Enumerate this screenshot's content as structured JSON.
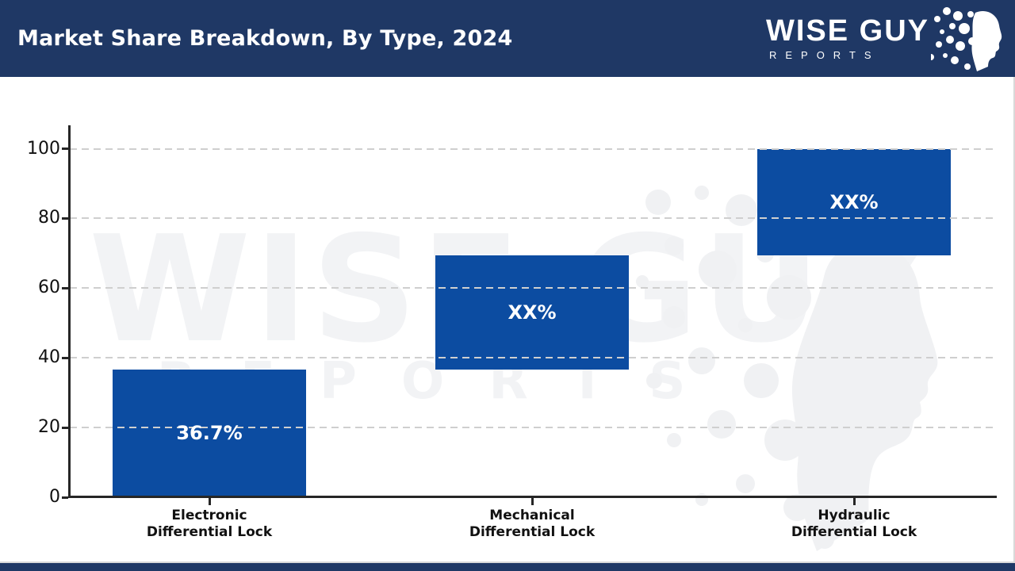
{
  "header": {
    "title": "Market Share Breakdown, By Type, 2024",
    "logo": {
      "line1": "WISE GUY",
      "line2": "REPORTS"
    }
  },
  "watermark": {
    "line1": "WISE GUY",
    "line2": "REPORTS"
  },
  "colors": {
    "header_navy": "#1f3865",
    "footer_navy": "#1f3865",
    "bar_blue": "#0c4ca1",
    "watermark_gray": "#f2f3f5",
    "grid_gray": "#cfcfcf",
    "frame_gray": "#d9d9d9"
  },
  "chart_data": {
    "type": "bar",
    "subtype": "floating-waterfall",
    "title": "Market Share Breakdown, By Type, 2024",
    "categories": [
      {
        "line1": "Electronic",
        "line2": "Differential Lock"
      },
      {
        "line1": "Mechanical",
        "line2": "Differential Lock"
      },
      {
        "line1": "Hydraulic",
        "line2": "Differential Lock"
      }
    ],
    "bars": [
      {
        "category": "Electronic Differential Lock",
        "start": 0,
        "end": 36.7,
        "label": "36.7%"
      },
      {
        "category": "Mechanical Differential Lock",
        "start": 36.7,
        "end": 69.3,
        "label": "XX%"
      },
      {
        "category": "Hydraulic Differential Lock",
        "start": 69.3,
        "end": 100,
        "label": "XX%"
      }
    ],
    "xlabel": "",
    "ylabel": "",
    "ylim": [
      0,
      107
    ],
    "yticks": [
      0,
      20,
      40,
      60,
      80,
      100
    ],
    "grid": "horizontal-dashed",
    "legend": "none",
    "bar_color": "#0c4ca1",
    "bar_label_color": "#ffffff"
  }
}
